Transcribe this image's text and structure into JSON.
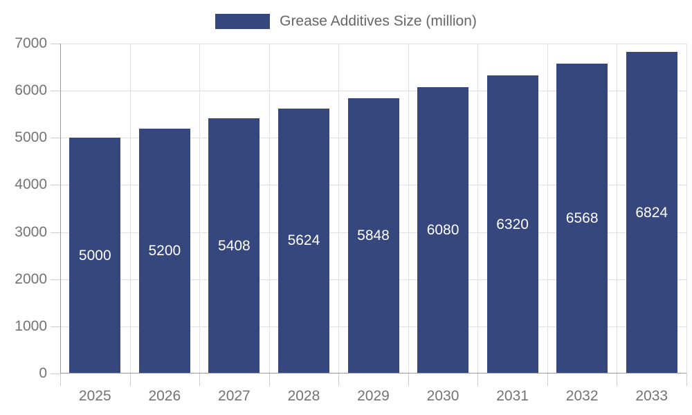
{
  "chart_data": {
    "type": "bar",
    "title": "",
    "legend": "Grease Additives Size (million)",
    "legend_position": "top",
    "categories": [
      "2025",
      "2026",
      "2027",
      "2028",
      "2029",
      "2030",
      "2031",
      "2032",
      "2033"
    ],
    "values": [
      5000,
      5200,
      5408,
      5624,
      5848,
      6080,
      6320,
      6568,
      6824
    ],
    "xlabel": "",
    "ylabel": "",
    "ylim": [
      0,
      7000
    ],
    "yticks": [
      0,
      1000,
      2000,
      3000,
      4000,
      5000,
      6000,
      7000
    ],
    "grid": true,
    "colors": {
      "bar": "#35477d",
      "bar_label": "#ffffff",
      "axis_text": "#737373",
      "legend_text": "#666666",
      "gridline": "#e0e0e0",
      "tick": "#cccccc",
      "axis_line": "#999999",
      "background": "#ffffff"
    }
  }
}
